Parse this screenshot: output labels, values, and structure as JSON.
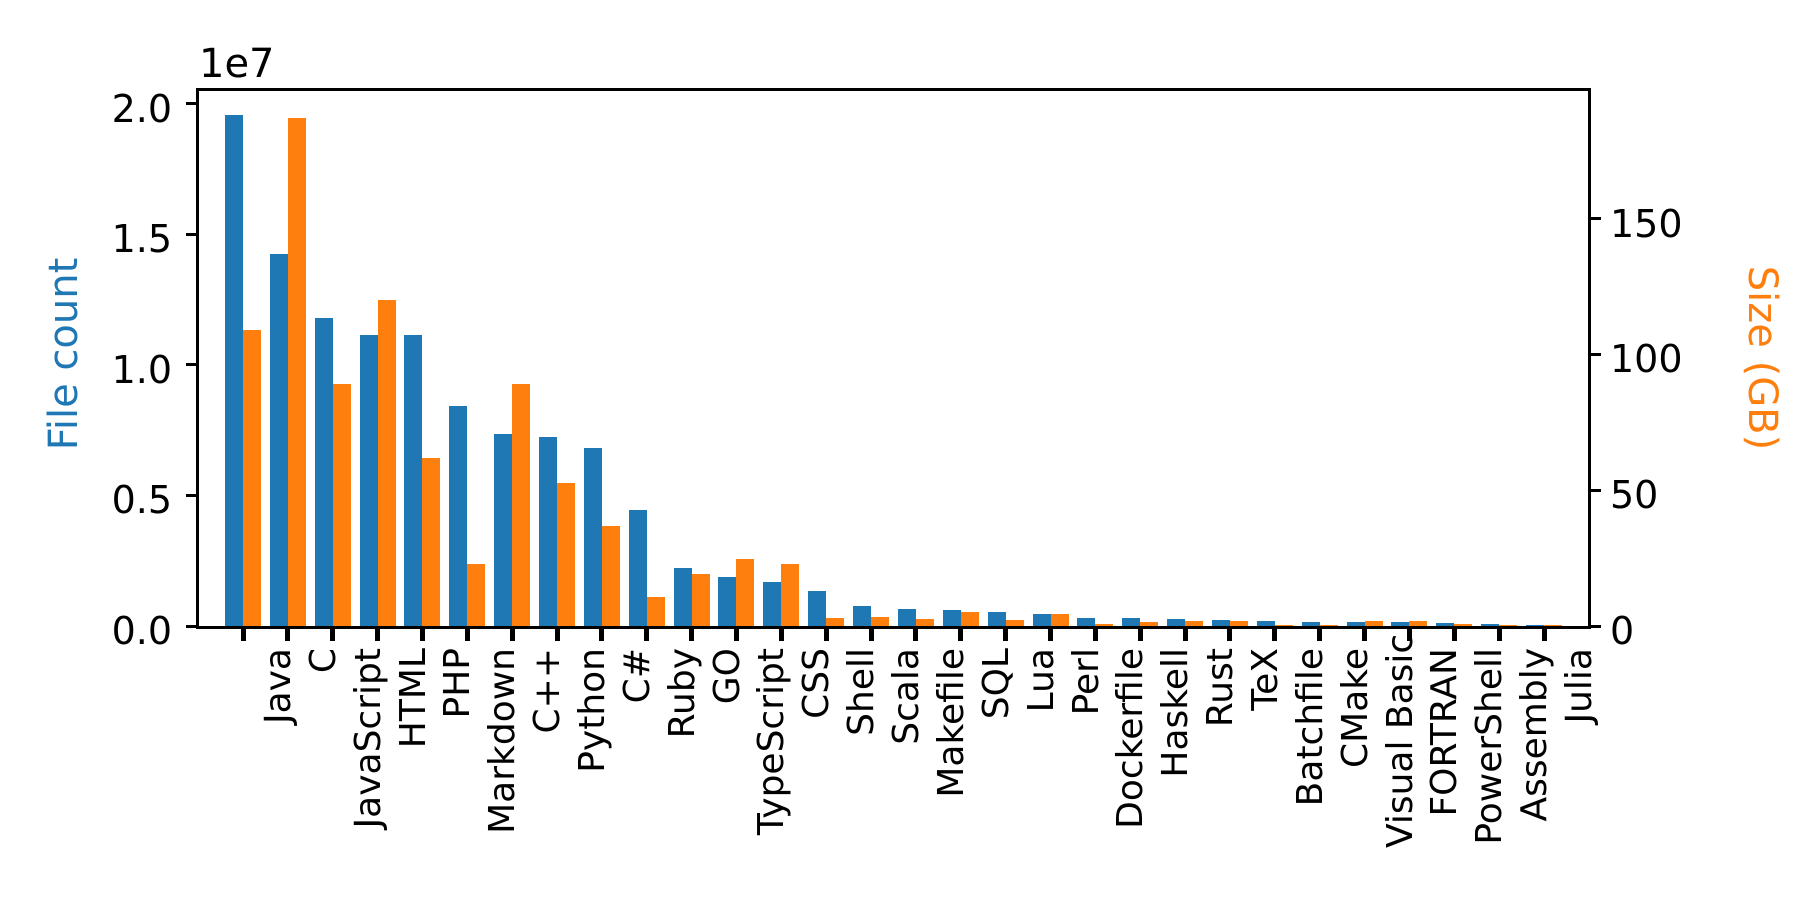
{
  "figure": {
    "background": "#ffffff",
    "offset_text": "1e7",
    "left_axis": {
      "label": "File count",
      "label_color": "#1f77b4",
      "tick_labels": [
        "0.0",
        "0.5",
        "1.0",
        "1.5",
        "2.0"
      ],
      "tick_values": [
        0,
        5000000,
        10000000,
        15000000,
        20000000
      ],
      "display_max": 20480000
    },
    "right_axis": {
      "label": "Size (GB)",
      "label_color": "#ff7f0e",
      "tick_labels": [
        "0",
        "50",
        "100",
        "150"
      ],
      "tick_values": [
        0,
        50,
        100,
        150
      ],
      "display_max": 197
    }
  },
  "chart_data": {
    "type": "bar",
    "title": "",
    "xlabel": "",
    "grid": false,
    "legend": "none",
    "categories": [
      "Java",
      "C",
      "JavaScript",
      "HTML",
      "PHP",
      "Markdown",
      "C++",
      "Python",
      "C#",
      "Ruby",
      "GO",
      "TypeScript",
      "CSS",
      "Shell",
      "Scala",
      "Makefile",
      "SQL",
      "Lua",
      "Perl",
      "Dockerfile",
      "Haskell",
      "Rust",
      "TeX",
      "Batchfile",
      "CMake",
      "Visual Basic",
      "FORTRAN",
      "PowerShell",
      "Assembly",
      "Julia"
    ],
    "series": [
      {
        "name": "File count",
        "axis": "left",
        "color": "#1f77b4",
        "ylabel": "File count",
        "ylim": [
          0,
          20480000
        ],
        "values": [
          19550000,
          14230000,
          11800000,
          11160000,
          11160000,
          8440000,
          7350000,
          7250000,
          6830000,
          4450000,
          2230000,
          1880000,
          1690000,
          1340000,
          770000,
          640000,
          630000,
          540000,
          450000,
          320000,
          290000,
          280000,
          230000,
          200000,
          170000,
          160000,
          140000,
          130000,
          90000,
          50000
        ]
      },
      {
        "name": "Size (GB)",
        "axis": "right",
        "color": "#ff7f0e",
        "ylabel": "Size (GB)",
        "ylim": [
          0,
          197
        ],
        "values": [
          109,
          187,
          89,
          120,
          62,
          23,
          89,
          52.5,
          37,
          10.8,
          19,
          24.8,
          22.9,
          2.8,
          3.4,
          2.6,
          5.1,
          2.3,
          4.4,
          0.6,
          1.4,
          2.0,
          1.7,
          0.5,
          0.45,
          1.95,
          1.7,
          0.7,
          0.55,
          0.25
        ]
      }
    ]
  }
}
